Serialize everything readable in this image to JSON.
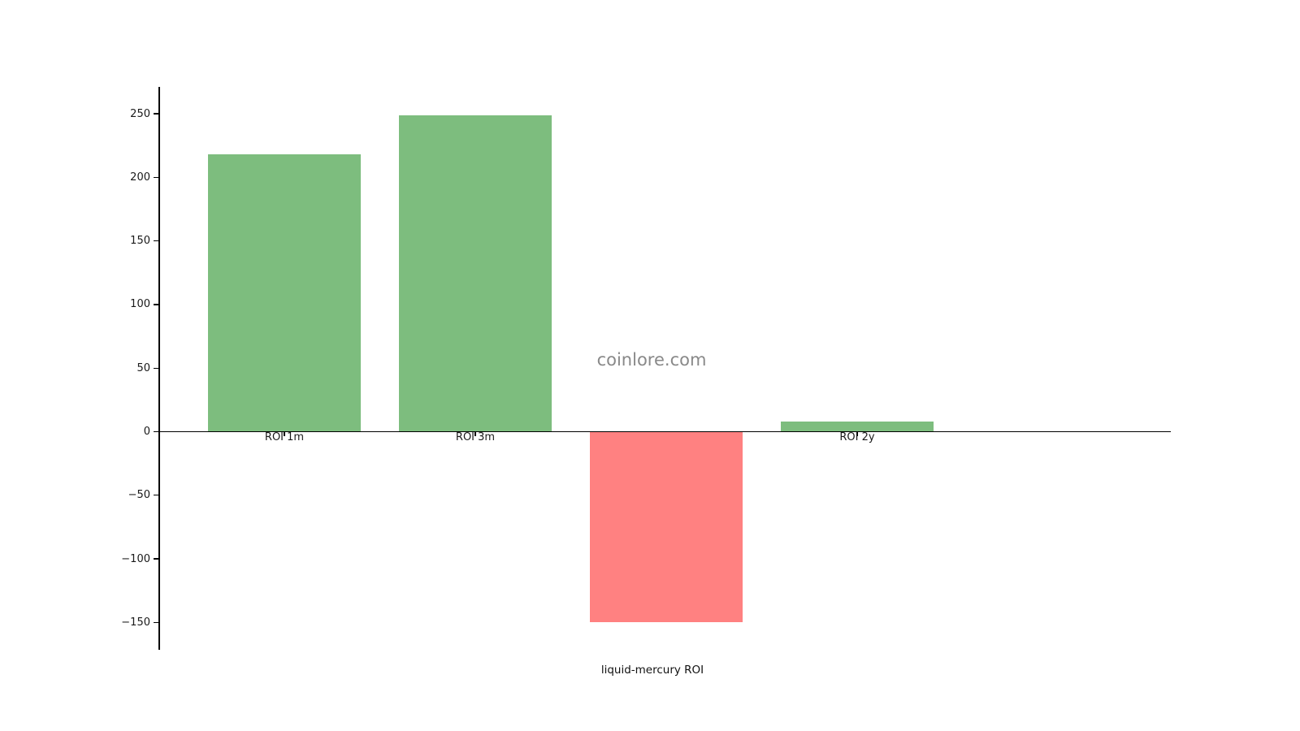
{
  "watermark": "coinlore.com",
  "title": "liquid-mercury ROI",
  "chart_data": {
    "type": "bar",
    "title": "liquid-mercury ROI",
    "xlabel": "",
    "ylabel": "",
    "categories": [
      "ROI 1m",
      "ROI 3m",
      "",
      "ROI 2y"
    ],
    "values": [
      218,
      249,
      -150,
      8
    ],
    "bar_colors": [
      "#7dbd7e",
      "#7dbd7e",
      "#ff8181",
      "#7dbd7e"
    ],
    "positive_color": "#7dbd7e",
    "negative_color": "#ff8181",
    "y_ticks": [
      250,
      200,
      150,
      100,
      50,
      0,
      -50,
      -100,
      -150
    ],
    "y_tick_labels": [
      "250",
      "200",
      "150",
      "100",
      "50",
      "0",
      "−50",
      "−100",
      "−150"
    ],
    "ylim": [
      -170,
      268
    ],
    "grid": false,
    "legend": null,
    "note": "third category label is obscured by the negative bar drawn over it",
    "watermark": "coinlore.com"
  }
}
